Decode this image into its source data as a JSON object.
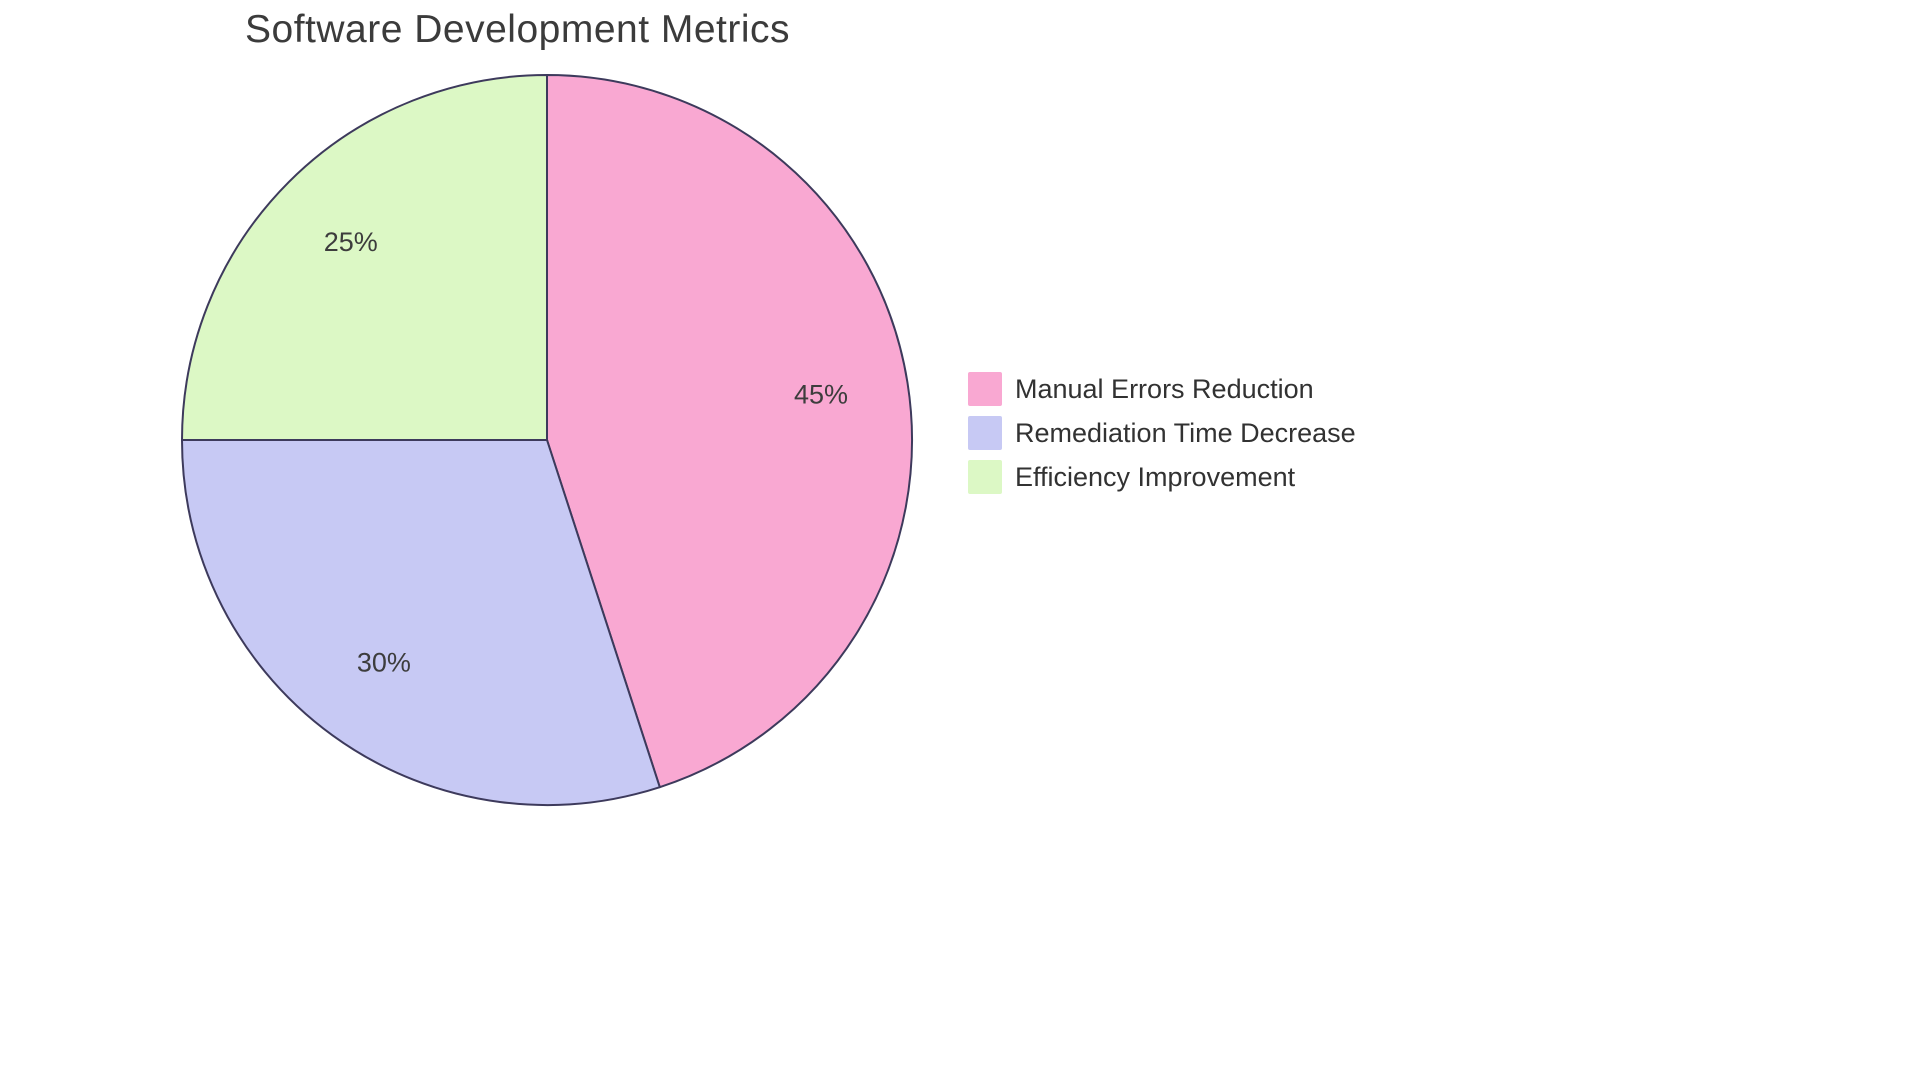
{
  "title": "Software Development Metrics",
  "chart_data": {
    "type": "pie",
    "title": "Software Development Metrics",
    "categories": [
      "Manual Errors Reduction",
      "Remediation Time Decrease",
      "Efficiency Improvement"
    ],
    "values": [
      45,
      30,
      25
    ],
    "slice_labels": [
      "45%",
      "30%",
      "25%"
    ],
    "colors": [
      "#F9A8D2",
      "#C7C9F4",
      "#DCF8C5"
    ],
    "stroke_color": "#3D3A5C",
    "start_angle_deg": 0,
    "direction": "clockwise",
    "legend_position": "right"
  }
}
